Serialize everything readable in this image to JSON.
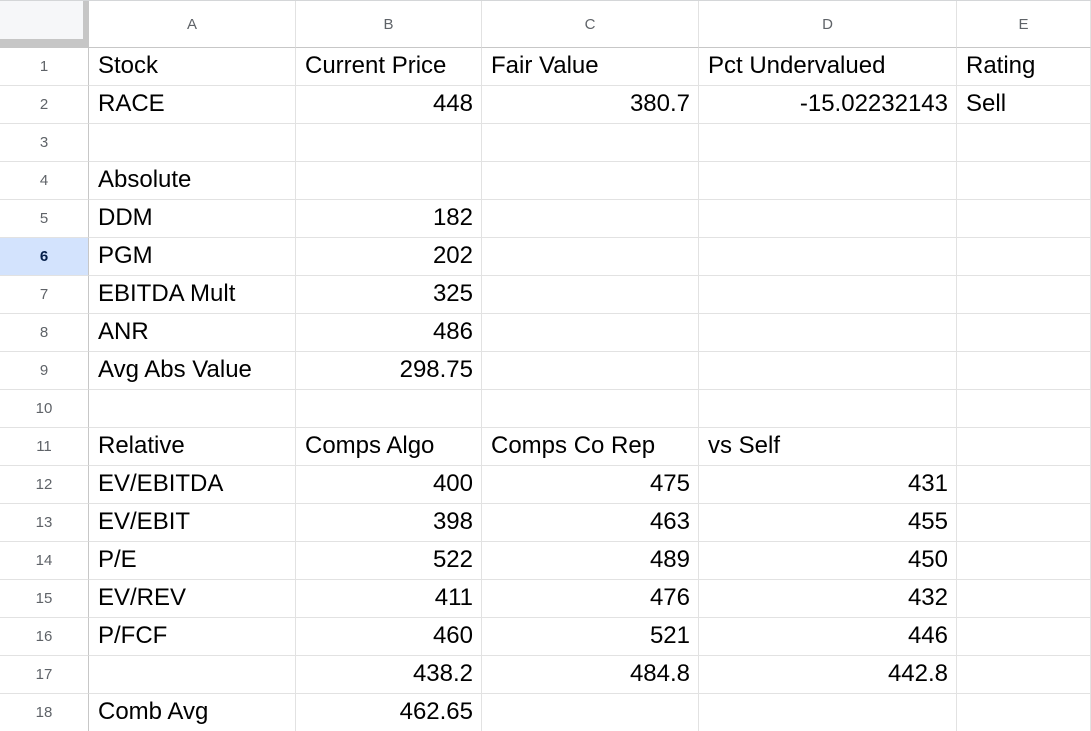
{
  "sheet": {
    "colors": {
      "grid_line": "#e2e2e2",
      "header_line": "#c7c7c7",
      "selected_row_header_bg": "#d3e3fd",
      "selected_row_header_text": "#041e49",
      "header_text": "#5f6368",
      "cell_text": "#000000",
      "corner_bg": "#f6f7f9",
      "corner_border": "#c6c6c6"
    },
    "column_headers": [
      "A",
      "B",
      "C",
      "D",
      "E"
    ],
    "selected_row": "6",
    "rows": [
      {
        "n": "1",
        "cells": [
          {
            "c": "A",
            "v": "Stock",
            "a": "left"
          },
          {
            "c": "B",
            "v": "Current Price",
            "a": "left"
          },
          {
            "c": "C",
            "v": "Fair Value",
            "a": "left"
          },
          {
            "c": "D",
            "v": "Pct Undervalued",
            "a": "left"
          },
          {
            "c": "E",
            "v": "Rating",
            "a": "left"
          }
        ]
      },
      {
        "n": "2",
        "cells": [
          {
            "c": "A",
            "v": "RACE",
            "a": "left"
          },
          {
            "c": "B",
            "v": "448",
            "a": "right"
          },
          {
            "c": "C",
            "v": "380.7",
            "a": "right"
          },
          {
            "c": "D",
            "v": "-15.02232143",
            "a": "right"
          },
          {
            "c": "E",
            "v": "Sell",
            "a": "left"
          }
        ]
      },
      {
        "n": "3",
        "cells": []
      },
      {
        "n": "4",
        "cells": [
          {
            "c": "A",
            "v": "Absolute",
            "a": "left"
          }
        ]
      },
      {
        "n": "5",
        "cells": [
          {
            "c": "A",
            "v": "DDM",
            "a": "left"
          },
          {
            "c": "B",
            "v": "182",
            "a": "right"
          }
        ]
      },
      {
        "n": "6",
        "cells": [
          {
            "c": "A",
            "v": "PGM",
            "a": "left"
          },
          {
            "c": "B",
            "v": "202",
            "a": "right"
          }
        ]
      },
      {
        "n": "7",
        "cells": [
          {
            "c": "A",
            "v": "EBITDA Mult",
            "a": "left"
          },
          {
            "c": "B",
            "v": "325",
            "a": "right"
          }
        ]
      },
      {
        "n": "8",
        "cells": [
          {
            "c": "A",
            "v": "ANR",
            "a": "left"
          },
          {
            "c": "B",
            "v": "486",
            "a": "right"
          }
        ]
      },
      {
        "n": "9",
        "cells": [
          {
            "c": "A",
            "v": "Avg Abs Value",
            "a": "left"
          },
          {
            "c": "B",
            "v": "298.75",
            "a": "right"
          }
        ]
      },
      {
        "n": "10",
        "cells": []
      },
      {
        "n": "11",
        "cells": [
          {
            "c": "A",
            "v": "Relative",
            "a": "left"
          },
          {
            "c": "B",
            "v": "Comps Algo",
            "a": "left"
          },
          {
            "c": "C",
            "v": "Comps Co Rep",
            "a": "left"
          },
          {
            "c": "D",
            "v": "vs Self",
            "a": "left"
          }
        ]
      },
      {
        "n": "12",
        "cells": [
          {
            "c": "A",
            "v": "EV/EBITDA",
            "a": "left"
          },
          {
            "c": "B",
            "v": "400",
            "a": "right"
          },
          {
            "c": "C",
            "v": "475",
            "a": "right"
          },
          {
            "c": "D",
            "v": "431",
            "a": "right"
          }
        ]
      },
      {
        "n": "13",
        "cells": [
          {
            "c": "A",
            "v": "EV/EBIT",
            "a": "left"
          },
          {
            "c": "B",
            "v": "398",
            "a": "right"
          },
          {
            "c": "C",
            "v": "463",
            "a": "right"
          },
          {
            "c": "D",
            "v": "455",
            "a": "right"
          }
        ]
      },
      {
        "n": "14",
        "cells": [
          {
            "c": "A",
            "v": "P/E",
            "a": "left"
          },
          {
            "c": "B",
            "v": "522",
            "a": "right"
          },
          {
            "c": "C",
            "v": "489",
            "a": "right"
          },
          {
            "c": "D",
            "v": "450",
            "a": "right"
          }
        ]
      },
      {
        "n": "15",
        "cells": [
          {
            "c": "A",
            "v": "EV/REV",
            "a": "left"
          },
          {
            "c": "B",
            "v": "411",
            "a": "right"
          },
          {
            "c": "C",
            "v": "476",
            "a": "right"
          },
          {
            "c": "D",
            "v": "432",
            "a": "right"
          }
        ]
      },
      {
        "n": "16",
        "cells": [
          {
            "c": "A",
            "v": "P/FCF",
            "a": "left"
          },
          {
            "c": "B",
            "v": "460",
            "a": "right"
          },
          {
            "c": "C",
            "v": "521",
            "a": "right"
          },
          {
            "c": "D",
            "v": "446",
            "a": "right"
          }
        ]
      },
      {
        "n": "17",
        "cells": [
          {
            "c": "B",
            "v": "438.2",
            "a": "right"
          },
          {
            "c": "C",
            "v": "484.8",
            "a": "right"
          },
          {
            "c": "D",
            "v": "442.8",
            "a": "right"
          }
        ]
      },
      {
        "n": "18",
        "cells": [
          {
            "c": "A",
            "v": "Comb Avg",
            "a": "left"
          },
          {
            "c": "B",
            "v": "462.65",
            "a": "right"
          }
        ]
      }
    ]
  }
}
